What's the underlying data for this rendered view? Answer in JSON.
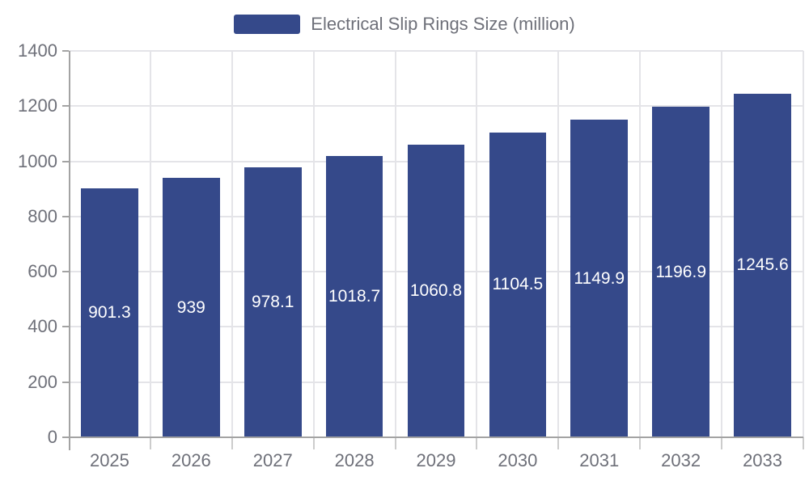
{
  "chart_data": {
    "type": "bar",
    "title": "Electrical Slip Rings Size (million)",
    "legend": {
      "label": "Electrical Slip Rings Size (million)",
      "position": "top-center"
    },
    "categories": [
      "2025",
      "2026",
      "2027",
      "2028",
      "2029",
      "2030",
      "2031",
      "2032",
      "2033"
    ],
    "values": [
      901.3,
      939,
      978.1,
      1018.7,
      1060.8,
      1104.5,
      1149.9,
      1196.9,
      1245.6
    ],
    "xlabel": "",
    "ylabel": "",
    "ylim": [
      0,
      1400
    ],
    "yticks": [
      0,
      200,
      400,
      600,
      800,
      1000,
      1200,
      1400
    ],
    "grid": true,
    "value_labels_position": "inside-center",
    "colors": {
      "bar": "#35498a",
      "value_label": "#ffffff",
      "axis_text": "#6e7079",
      "axis_line": "#a3a3a3",
      "grid": "#e4e4e8",
      "category_tick": "#cccccc",
      "background": "#ffffff"
    }
  }
}
